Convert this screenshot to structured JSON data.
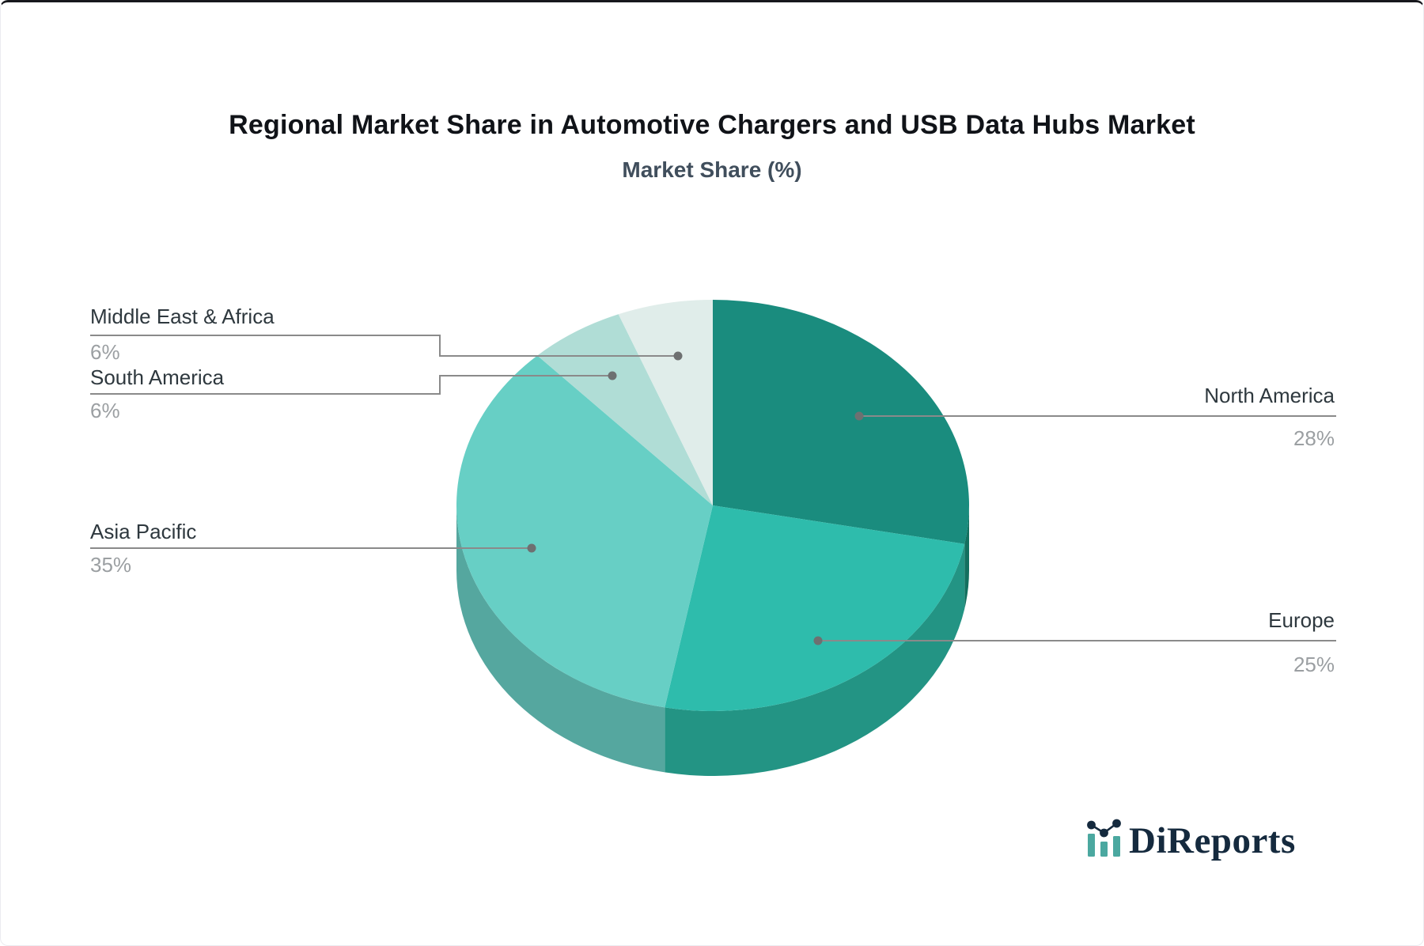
{
  "header": {
    "title": "Regional Market Share in Automotive Chargers and USB Data Hubs Market",
    "subtitle": "Market Share (%)"
  },
  "chart_data": {
    "type": "pie",
    "style": "3d-extruded",
    "title": "Regional Market Share in Automotive Chargers and USB Data Hubs Market",
    "subtitle": "Market Share (%)",
    "unit": "%",
    "order": "clockwise-from-12-oclock",
    "legend": false,
    "labels": [
      "North America",
      "Europe",
      "Asia Pacific",
      "South America",
      "Middle East & Africa"
    ],
    "values": [
      28,
      25,
      35,
      6,
      6
    ],
    "pct_labels": [
      "28%",
      "25%",
      "35%",
      "6%",
      "6%"
    ],
    "colors": [
      "#1a8c7e",
      "#2ebcac",
      "#67cfc5",
      "#b0ddd6",
      "#e0edea"
    ],
    "side_colors": [
      "#13705f",
      "#239484",
      "#55a79f",
      "#8fbcb4",
      "#c2d6d2"
    ],
    "leader_line_color": "#8a8a8a",
    "leader_dot_color": "#6e7071"
  },
  "logo": {
    "text": "DiReports",
    "accent_color": "#4ba8a0",
    "text_color": "#152a3e"
  }
}
